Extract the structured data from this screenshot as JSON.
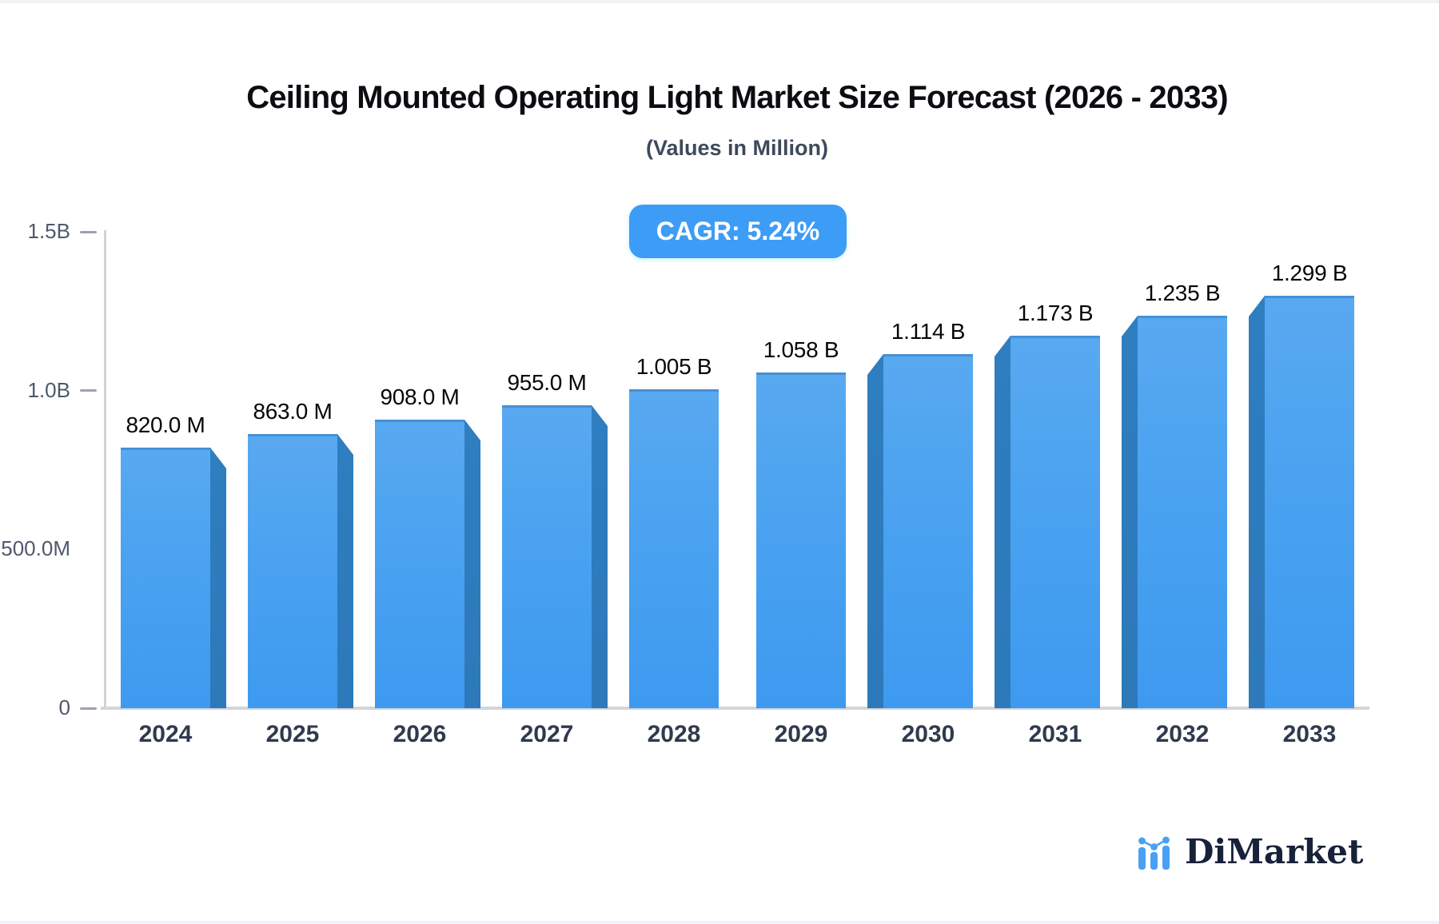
{
  "header": {
    "title": "Ceiling Mounted Operating Light Market Size Forecast (2026 - 2033)",
    "subtitle": "(Values in Million)",
    "cagr_badge": "CAGR: 5.24%"
  },
  "footer": {
    "brand": "DiMarket"
  },
  "colors": {
    "accent_blue": "#3d9cf5",
    "bar_face_top": "#58a9f0",
    "bar_face_bottom": "#3e9af0",
    "bar_side_dark": "#2d79ba",
    "axis_gray": "#d2d5da",
    "logo_blue": "#4aa0f5"
  },
  "chart_data": {
    "type": "bar",
    "title": "Ceiling Mounted Operating Light Market Size Forecast (2026 - 2033)",
    "subtitle": "(Values in Million)",
    "cagr": "5.24%",
    "categories": [
      "2024",
      "2025",
      "2026",
      "2027",
      "2028",
      "2029",
      "2030",
      "2031",
      "2032",
      "2033"
    ],
    "values_millions": [
      820,
      863,
      908,
      955,
      1005,
      1058,
      1114,
      1173,
      1235,
      1299
    ],
    "value_labels": [
      "820.0 M",
      "863.0 M",
      "908.0 M",
      "955.0 M",
      "1.005 B",
      "1.058 B",
      "1.114 B",
      "1.173 B",
      "1.235 B",
      "1.299 B"
    ],
    "y_axis": {
      "ylim_millions": [
        0,
        1500
      ],
      "ticks": [
        {
          "label": "1.5B",
          "value_millions": 1500,
          "dash": true
        },
        {
          "label": "1.0B",
          "value_millions": 1000,
          "dash": true
        },
        {
          "label": "500.0M",
          "value_millions": 500,
          "dash": false
        },
        {
          "label": "0",
          "value_millions": 0,
          "dash": true
        }
      ]
    },
    "grid": false,
    "legend": false,
    "bar_style": "pseudo-3d"
  }
}
